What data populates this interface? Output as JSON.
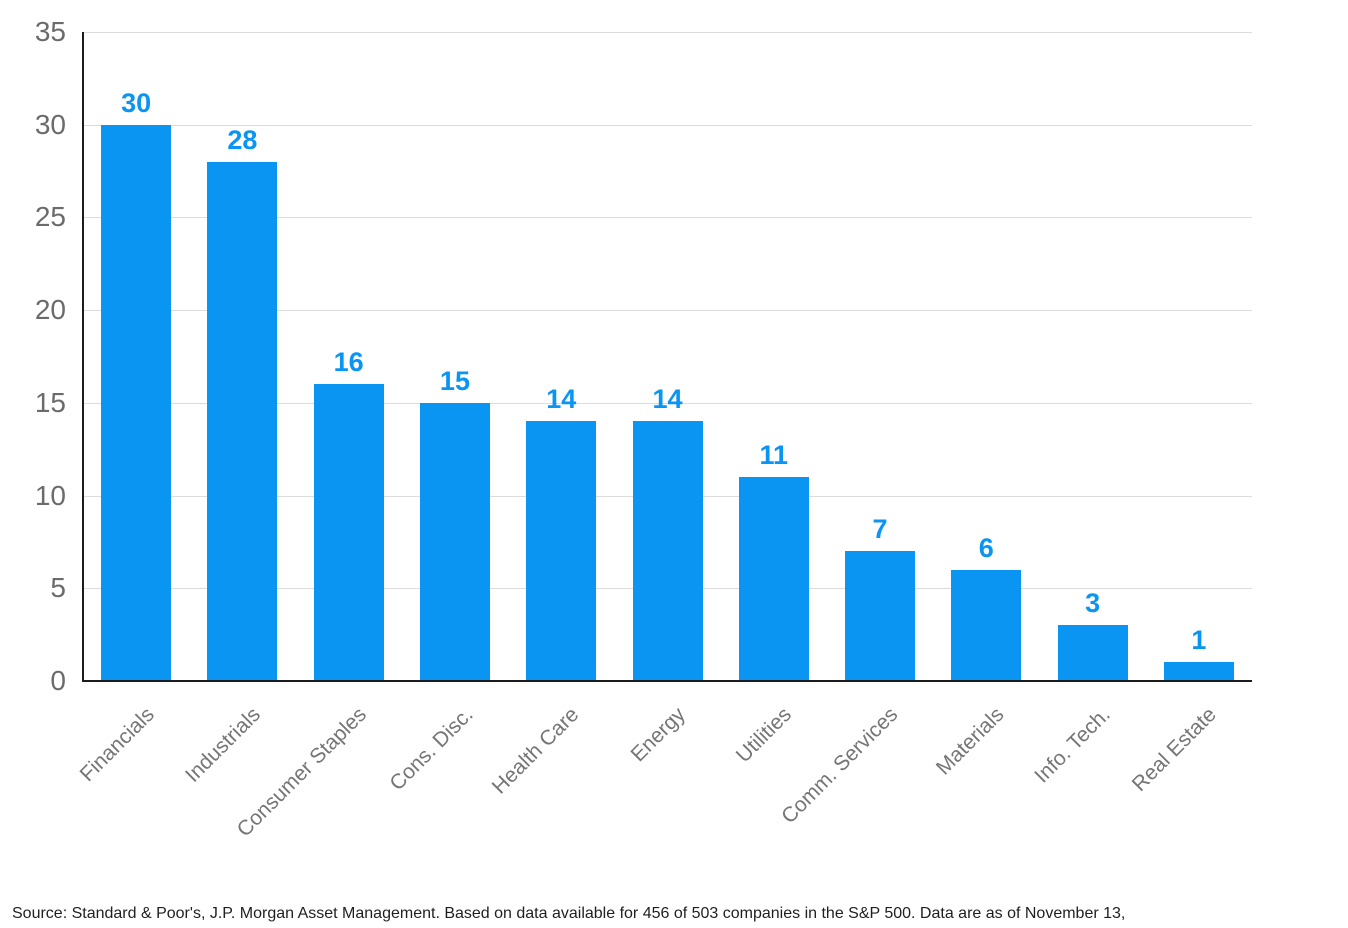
{
  "chart_data": {
    "type": "bar",
    "title": "",
    "xlabel": "",
    "ylabel": "",
    "categories": [
      "Financials",
      "Industrials",
      "Consumer Staples",
      "Cons. Disc.",
      "Health Care",
      "Energy",
      "Utilities",
      "Comm. Services",
      "Materials",
      "Info. Tech.",
      "Real Estate"
    ],
    "values": [
      30,
      28,
      16,
      15,
      14,
      14,
      11,
      7,
      6,
      3,
      1
    ],
    "value_labels": [
      "30",
      "28",
      "16",
      "15",
      "14",
      "14",
      "11",
      "7",
      "6",
      "3",
      "1"
    ],
    "ylim": [
      0,
      35
    ],
    "yticks": [
      0,
      5,
      10,
      15,
      20,
      25,
      30,
      35
    ],
    "grid": "horizontal-only",
    "legend": "none",
    "category_label_rotation_deg": -45,
    "bar_color": "#0a95f2",
    "value_label_color": "#0a95f2",
    "gridline_color": "#dcdcdc",
    "axis_line_color": "#1c1c1c",
    "y_tick_label_color": "#6b6b6b",
    "category_label_color": "#757575"
  },
  "footer": {
    "source_note": "Source: Standard & Poor's, J.P. Morgan Asset Management. Based on data available for 456 of 503 companies in the S&P 500. Data are as of November 13,"
  }
}
